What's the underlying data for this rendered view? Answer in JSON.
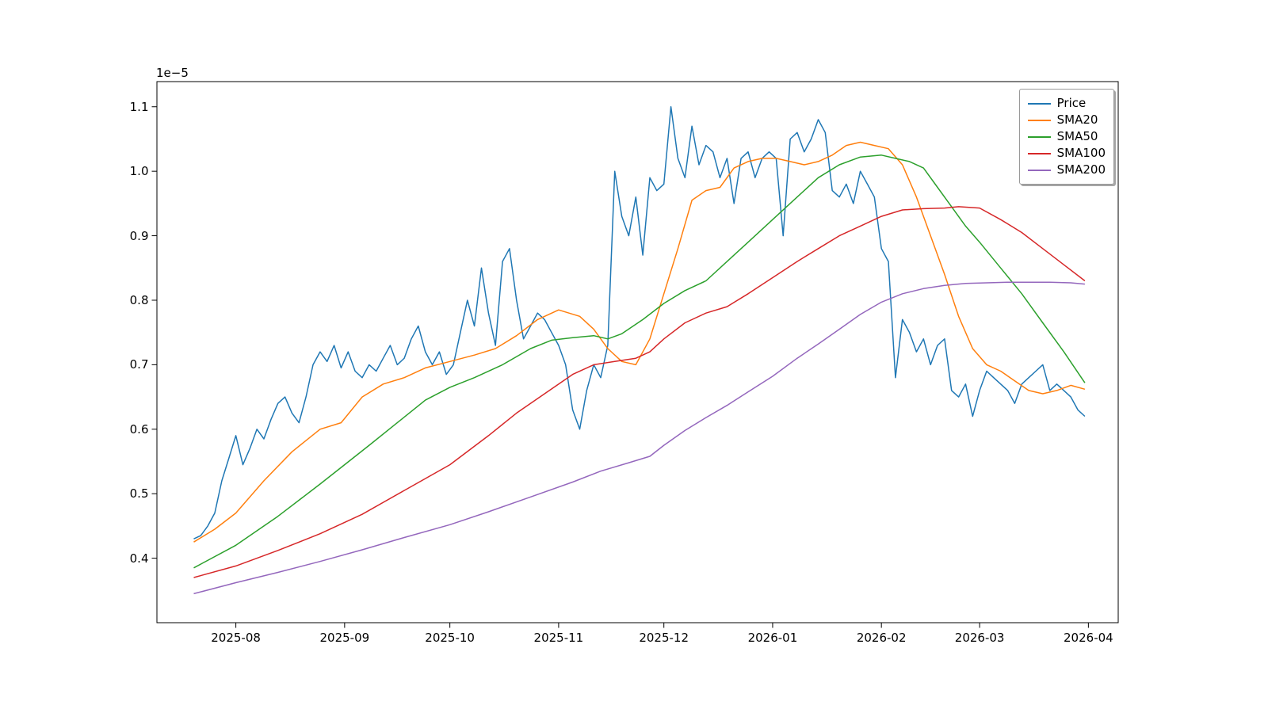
{
  "figure": {
    "background": "#ffffff",
    "axes_edge_color": "#000000"
  },
  "chart_data": {
    "type": "line",
    "title": "",
    "xlabel": "",
    "ylabel": "",
    "y_offset_label": "1e−5",
    "grid": false,
    "legend_position": "upper right",
    "xlim_days": [
      -10.5,
      263.5
    ],
    "ylim": [
      0.3,
      1.139
    ],
    "x_ticks": [
      {
        "day": 12,
        "label": "2025-08"
      },
      {
        "day": 43,
        "label": "2025-09"
      },
      {
        "day": 73,
        "label": "2025-10"
      },
      {
        "day": 104,
        "label": "2025-11"
      },
      {
        "day": 134,
        "label": "2025-12"
      },
      {
        "day": 165,
        "label": "2026-01"
      },
      {
        "day": 196,
        "label": "2026-02"
      },
      {
        "day": 224,
        "label": "2026-03"
      },
      {
        "day": 255,
        "label": "2026-04"
      }
    ],
    "y_ticks": [
      0.4,
      0.5,
      0.6,
      0.7,
      0.8,
      0.9,
      1.0,
      1.1
    ],
    "price": {
      "name": "Price",
      "color": "#1f77b4",
      "day_start": 0,
      "day_step": 2,
      "values": [
        0.43,
        0.435,
        0.45,
        0.47,
        0.52,
        0.555,
        0.59,
        0.545,
        0.57,
        0.6,
        0.585,
        0.615,
        0.64,
        0.65,
        0.625,
        0.61,
        0.65,
        0.7,
        0.72,
        0.705,
        0.73,
        0.695,
        0.72,
        0.69,
        0.68,
        0.7,
        0.69,
        0.71,
        0.73,
        0.7,
        0.71,
        0.74,
        0.76,
        0.72,
        0.7,
        0.72,
        0.685,
        0.7,
        0.75,
        0.8,
        0.76,
        0.85,
        0.78,
        0.73,
        0.86,
        0.88,
        0.8,
        0.74,
        0.76,
        0.78,
        0.77,
        0.75,
        0.73,
        0.7,
        0.63,
        0.6,
        0.66,
        0.7,
        0.68,
        0.73,
        1.0,
        0.93,
        0.9,
        0.96,
        0.87,
        0.99,
        0.97,
        0.98,
        1.1,
        1.02,
        0.99,
        1.07,
        1.01,
        1.04,
        1.03,
        0.99,
        1.02,
        0.95,
        1.02,
        1.03,
        0.99,
        1.02,
        1.03,
        1.02,
        0.9,
        1.05,
        1.06,
        1.03,
        1.05,
        1.08,
        1.06,
        0.97,
        0.96,
        0.98,
        0.95,
        1.0,
        0.98,
        0.96,
        0.88,
        0.86,
        0.68,
        0.77,
        0.75,
        0.72,
        0.74,
        0.7,
        0.73,
        0.74,
        0.66,
        0.65,
        0.67,
        0.62,
        0.66,
        0.69,
        0.68,
        0.67,
        0.66,
        0.64,
        0.67,
        0.68,
        0.69,
        0.7,
        0.66,
        0.67,
        0.66,
        0.65,
        0.63,
        0.62
      ]
    },
    "sma_series": [
      {
        "name": "SMA20",
        "color": "#ff7f0e",
        "points": [
          [
            0,
            0.425
          ],
          [
            6,
            0.445
          ],
          [
            12,
            0.47
          ],
          [
            20,
            0.52
          ],
          [
            28,
            0.565
          ],
          [
            36,
            0.6
          ],
          [
            42,
            0.61
          ],
          [
            48,
            0.65
          ],
          [
            54,
            0.67
          ],
          [
            60,
            0.68
          ],
          [
            66,
            0.695
          ],
          [
            73,
            0.705
          ],
          [
            80,
            0.715
          ],
          [
            86,
            0.725
          ],
          [
            92,
            0.745
          ],
          [
            98,
            0.77
          ],
          [
            104,
            0.785
          ],
          [
            110,
            0.775
          ],
          [
            114,
            0.755
          ],
          [
            118,
            0.725
          ],
          [
            122,
            0.705
          ],
          [
            126,
            0.7
          ],
          [
            130,
            0.74
          ],
          [
            134,
            0.81
          ],
          [
            138,
            0.88
          ],
          [
            142,
            0.955
          ],
          [
            146,
            0.97
          ],
          [
            150,
            0.975
          ],
          [
            154,
            1.005
          ],
          [
            158,
            1.015
          ],
          [
            162,
            1.02
          ],
          [
            166,
            1.02
          ],
          [
            170,
            1.015
          ],
          [
            174,
            1.01
          ],
          [
            178,
            1.015
          ],
          [
            182,
            1.025
          ],
          [
            186,
            1.04
          ],
          [
            190,
            1.045
          ],
          [
            194,
            1.04
          ],
          [
            198,
            1.035
          ],
          [
            202,
            1.01
          ],
          [
            206,
            0.96
          ],
          [
            210,
            0.9
          ],
          [
            214,
            0.84
          ],
          [
            218,
            0.775
          ],
          [
            222,
            0.725
          ],
          [
            226,
            0.7
          ],
          [
            230,
            0.69
          ],
          [
            234,
            0.675
          ],
          [
            238,
            0.66
          ],
          [
            242,
            0.655
          ],
          [
            246,
            0.66
          ],
          [
            250,
            0.668
          ],
          [
            254,
            0.662
          ]
        ]
      },
      {
        "name": "SMA50",
        "color": "#2ca02c",
        "points": [
          [
            0,
            0.385
          ],
          [
            12,
            0.42
          ],
          [
            24,
            0.465
          ],
          [
            36,
            0.515
          ],
          [
            43,
            0.545
          ],
          [
            50,
            0.575
          ],
          [
            58,
            0.61
          ],
          [
            66,
            0.645
          ],
          [
            73,
            0.665
          ],
          [
            80,
            0.68
          ],
          [
            88,
            0.7
          ],
          [
            96,
            0.725
          ],
          [
            102,
            0.738
          ],
          [
            108,
            0.742
          ],
          [
            114,
            0.745
          ],
          [
            118,
            0.74
          ],
          [
            122,
            0.748
          ],
          [
            128,
            0.77
          ],
          [
            134,
            0.795
          ],
          [
            140,
            0.815
          ],
          [
            146,
            0.83
          ],
          [
            152,
            0.86
          ],
          [
            158,
            0.89
          ],
          [
            165,
            0.925
          ],
          [
            172,
            0.96
          ],
          [
            178,
            0.99
          ],
          [
            184,
            1.01
          ],
          [
            190,
            1.022
          ],
          [
            196,
            1.025
          ],
          [
            200,
            1.02
          ],
          [
            204,
            1.015
          ],
          [
            208,
            1.005
          ],
          [
            212,
            0.975
          ],
          [
            216,
            0.945
          ],
          [
            220,
            0.915
          ],
          [
            224,
            0.89
          ],
          [
            230,
            0.85
          ],
          [
            236,
            0.81
          ],
          [
            242,
            0.765
          ],
          [
            248,
            0.72
          ],
          [
            254,
            0.672
          ]
        ]
      },
      {
        "name": "SMA100",
        "color": "#d62728",
        "points": [
          [
            0,
            0.37
          ],
          [
            12,
            0.388
          ],
          [
            24,
            0.412
          ],
          [
            36,
            0.438
          ],
          [
            48,
            0.468
          ],
          [
            60,
            0.505
          ],
          [
            73,
            0.545
          ],
          [
            84,
            0.59
          ],
          [
            92,
            0.625
          ],
          [
            100,
            0.655
          ],
          [
            108,
            0.685
          ],
          [
            114,
            0.7
          ],
          [
            120,
            0.705
          ],
          [
            126,
            0.71
          ],
          [
            130,
            0.72
          ],
          [
            134,
            0.74
          ],
          [
            140,
            0.765
          ],
          [
            146,
            0.78
          ],
          [
            152,
            0.79
          ],
          [
            158,
            0.81
          ],
          [
            165,
            0.835
          ],
          [
            172,
            0.86
          ],
          [
            178,
            0.88
          ],
          [
            184,
            0.9
          ],
          [
            190,
            0.915
          ],
          [
            196,
            0.93
          ],
          [
            202,
            0.94
          ],
          [
            208,
            0.942
          ],
          [
            214,
            0.943
          ],
          [
            218,
            0.945
          ],
          [
            224,
            0.943
          ],
          [
            230,
            0.925
          ],
          [
            236,
            0.905
          ],
          [
            242,
            0.88
          ],
          [
            248,
            0.855
          ],
          [
            254,
            0.83
          ]
        ]
      },
      {
        "name": "SMA200",
        "color": "#9467bd",
        "points": [
          [
            0,
            0.345
          ],
          [
            12,
            0.362
          ],
          [
            24,
            0.378
          ],
          [
            36,
            0.395
          ],
          [
            48,
            0.413
          ],
          [
            60,
            0.432
          ],
          [
            73,
            0.452
          ],
          [
            84,
            0.472
          ],
          [
            96,
            0.495
          ],
          [
            108,
            0.518
          ],
          [
            116,
            0.535
          ],
          [
            124,
            0.548
          ],
          [
            130,
            0.558
          ],
          [
            134,
            0.575
          ],
          [
            140,
            0.598
          ],
          [
            146,
            0.618
          ],
          [
            152,
            0.637
          ],
          [
            158,
            0.658
          ],
          [
            165,
            0.682
          ],
          [
            172,
            0.71
          ],
          [
            178,
            0.732
          ],
          [
            184,
            0.755
          ],
          [
            190,
            0.778
          ],
          [
            196,
            0.797
          ],
          [
            202,
            0.81
          ],
          [
            208,
            0.818
          ],
          [
            214,
            0.823
          ],
          [
            220,
            0.826
          ],
          [
            226,
            0.827
          ],
          [
            232,
            0.828
          ],
          [
            238,
            0.828
          ],
          [
            244,
            0.828
          ],
          [
            250,
            0.827
          ],
          [
            254,
            0.825
          ]
        ]
      }
    ]
  }
}
